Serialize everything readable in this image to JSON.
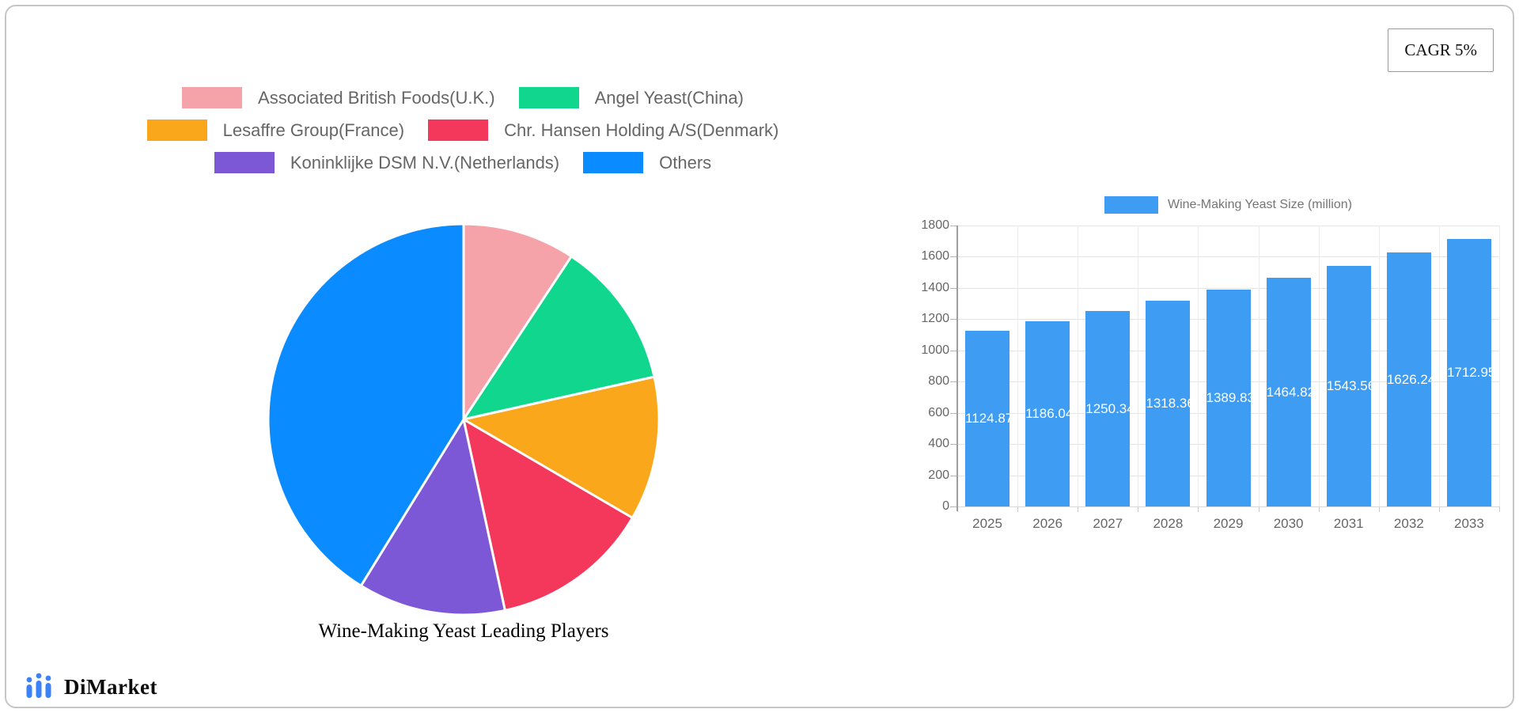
{
  "frame": {
    "cagr_label": "CAGR 5%"
  },
  "logo": {
    "text": "DiMarket",
    "icon_color": "#3B82F6"
  },
  "chart_data": [
    {
      "type": "pie",
      "title": "Wine-Making Yeast Leading Players",
      "labels": [
        "Associated British Foods(U.K.)",
        "Angel Yeast(China)",
        "Lesaffre Group(France)",
        "Chr. Hansen Holding A/S(Denmark)",
        "Koninklijke DSM N.V.(Netherlands)",
        "Others"
      ],
      "values_percent": [
        9.3,
        12.2,
        11.9,
        13.2,
        12.2,
        41.2
      ],
      "colors": [
        "#F5A3A9",
        "#10D68E",
        "#FAA71C",
        "#F4385C",
        "#7C58D6",
        "#0A8BFF"
      ],
      "legend_rows": [
        [
          0,
          1
        ],
        [
          2,
          3
        ],
        [
          4,
          5
        ]
      ],
      "start_angle": "top",
      "direction": "clockwise",
      "slice_gap_color": "#FFFFFF"
    },
    {
      "type": "bar",
      "legend_label": "Wine-Making Yeast Size (million)",
      "categories": [
        "2025",
        "2026",
        "2027",
        "2028",
        "2029",
        "2030",
        "2031",
        "2032",
        "2033"
      ],
      "values": [
        1124.87,
        1186.04,
        1250.34,
        1318.36,
        1389.83,
        1464.82,
        1543.56,
        1626.24,
        1712.95
      ],
      "bar_color": "#3E9CF3",
      "value_label_color": "#FFFFFF",
      "ylim": [
        0,
        1800
      ],
      "yticks": [
        0,
        200,
        400,
        600,
        800,
        1000,
        1200,
        1400,
        1600,
        1800
      ],
      "grid": true,
      "legend_position": "top"
    }
  ]
}
